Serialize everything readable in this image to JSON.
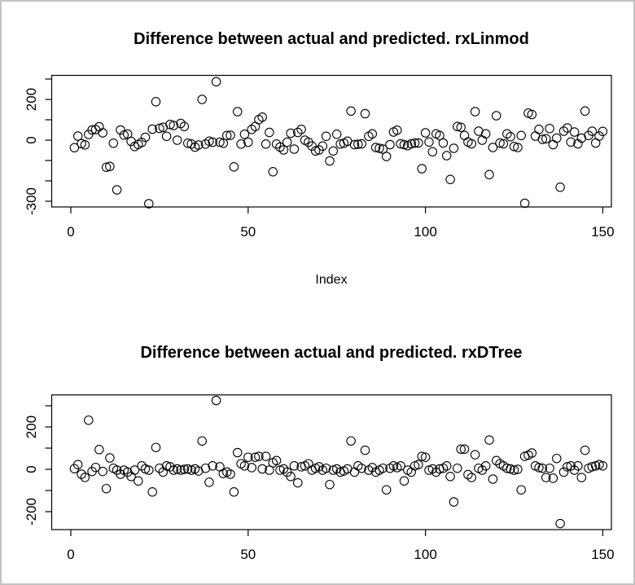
{
  "figure": {
    "background": "#ffffff",
    "border_color": "#c3c3c3",
    "point_color": "#000000"
  },
  "chart_data": [
    {
      "type": "scatter",
      "title": "Difference between actual and predicted. rxLinmod",
      "xlabel": "Index",
      "ylabel": "",
      "x_description": "index 1 to 150",
      "x_ticks": [
        0,
        50,
        100,
        150
      ],
      "y_ticks": [
        {
          "value": 300,
          "label": ""
        },
        {
          "value": 200,
          "label": "200"
        },
        {
          "value": 100,
          "label": ""
        },
        {
          "value": 0,
          "label": "0"
        },
        {
          "value": -100,
          "label": ""
        },
        {
          "value": -200,
          "label": ""
        },
        {
          "value": -300,
          "label": "-300"
        }
      ],
      "xlim": [
        -5,
        156
      ],
      "ylim": [
        -336,
        311
      ],
      "grid": false,
      "legend": "none",
      "marker": "open-circle",
      "values": [
        -37,
        20,
        -17,
        -23,
        28,
        50,
        52,
        66,
        36,
        -133,
        -129,
        -15,
        -244,
        50,
        25,
        30,
        -6,
        -31,
        -21,
        -11,
        14,
        -312,
        54,
        189,
        58,
        63,
        19,
        77,
        72,
        0,
        82,
        67,
        -15,
        -19,
        -34,
        -24,
        200,
        -19,
        -5,
        -10,
        287,
        -10,
        -15,
        23,
        24,
        -131,
        140,
        -19,
        29,
        -10,
        53,
        67,
        101,
        113,
        -19,
        38,
        -155,
        -19,
        -34,
        -48,
        -10,
        34,
        -44,
        38,
        53,
        0,
        -10,
        -29,
        -53,
        -48,
        -29,
        19,
        -102,
        -53,
        29,
        -19,
        -15,
        -5,
        143,
        -22,
        -20,
        -18,
        130,
        19,
        31,
        -36,
        -40,
        -44,
        -80,
        -22,
        40,
        49,
        -18,
        -22,
        -27,
        -18,
        -14,
        -14,
        -140,
        36,
        -9,
        -57,
        31,
        23,
        -14,
        -76,
        -193,
        -40,
        67,
        63,
        23,
        -9,
        -18,
        140,
        44,
        0,
        31,
        -169,
        -36,
        120,
        -14,
        -18,
        31,
        17,
        -31,
        -36,
        23,
        -310,
        133,
        126,
        20,
        53,
        4,
        7,
        57,
        -22,
        10,
        -231,
        44,
        60,
        -9,
        40,
        -18,
        10,
        143,
        23,
        44,
        -14,
        20,
        43
      ]
    },
    {
      "type": "scatter",
      "title": "Difference between actual and predicted. rxDTree",
      "xlabel": "",
      "ylabel": "",
      "x_description": "index 1 to 150",
      "x_ticks": [
        0,
        50,
        100,
        150
      ],
      "y_ticks": [
        {
          "value": 300,
          "label": ""
        },
        {
          "value": 200,
          "label": "200"
        },
        {
          "value": 100,
          "label": ""
        },
        {
          "value": 0,
          "label": "0"
        },
        {
          "value": -100,
          "label": ""
        },
        {
          "value": -200,
          "label": "-200"
        }
      ],
      "xlim": [
        -5,
        156
      ],
      "ylim": [
        -285,
        351
      ],
      "grid": false,
      "legend": "none",
      "marker": "open-circle",
      "values": [
        3,
        22,
        -23,
        -38,
        232,
        -10,
        9,
        93,
        -10,
        -91,
        54,
        5,
        -4,
        -23,
        -4,
        -13,
        -34,
        -4,
        -55,
        16,
        2,
        -4,
        -107,
        103,
        5,
        -13,
        16,
        12,
        -4,
        2,
        -4,
        0,
        2,
        -4,
        2,
        -8,
        134,
        5,
        -61,
        16,
        325,
        12,
        -20,
        -13,
        -23,
        -107,
        79,
        26,
        16,
        57,
        8,
        57,
        61,
        2,
        61,
        -4,
        31,
        41,
        -4,
        2,
        -13,
        -34,
        16,
        -64,
        12,
        16,
        26,
        -4,
        5,
        12,
        -4,
        5,
        -72,
        -4,
        2,
        -13,
        -8,
        2,
        134,
        -13,
        16,
        5,
        90,
        -4,
        8,
        -13,
        -4,
        5,
        -97,
        5,
        16,
        8,
        16,
        -55,
        -4,
        -13,
        16,
        22,
        61,
        57,
        -4,
        2,
        -13,
        2,
        5,
        16,
        -34,
        -154,
        5,
        95,
        95,
        -25,
        -39,
        69,
        5,
        -4,
        16,
        138,
        -46,
        41,
        26,
        16,
        5,
        2,
        -4,
        0,
        -97,
        61,
        67,
        77,
        16,
        8,
        5,
        -39,
        5,
        -42,
        51,
        -256,
        -13,
        12,
        16,
        -4,
        16,
        -39,
        90,
        5,
        12,
        16,
        22,
        16
      ]
    }
  ]
}
